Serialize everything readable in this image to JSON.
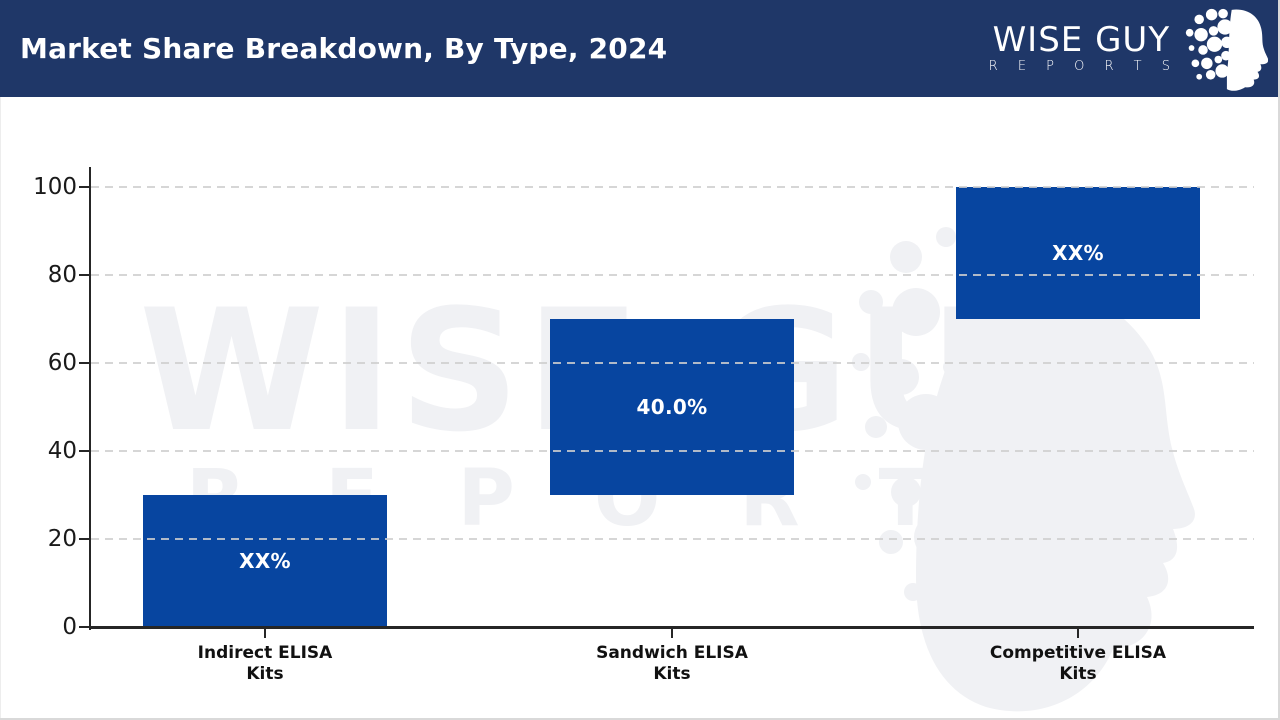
{
  "header": {
    "title": "Market Share Breakdown, By Type, 2024",
    "bg_color": "#1F3768",
    "logo": {
      "line1": "WISE GUY",
      "line2": "R E P O R T S"
    }
  },
  "watermark": {
    "line1": "WISE GUY",
    "line2": "R E P O R T S"
  },
  "chart_data": {
    "type": "bar",
    "subtype": "floating-segment (waterfall style)",
    "title": "Market Share Breakdown, By Type, 2024",
    "categories": [
      {
        "line1": "Indirect ELISA",
        "line2": "Kits"
      },
      {
        "line1": "Sandwich ELISA",
        "line2": "Kits"
      },
      {
        "line1": "Competitive ELISA",
        "line2": "Kits"
      }
    ],
    "segments": [
      {
        "start": 0,
        "end": 30,
        "label": "XX%"
      },
      {
        "start": 30,
        "end": 70,
        "label": "40.0%"
      },
      {
        "start": 70,
        "end": 100,
        "label": "XX%"
      }
    ],
    "xlabel": "",
    "ylabel": "",
    "ylim": [
      0,
      100
    ],
    "yticks": [
      0,
      20,
      40,
      60,
      80,
      100
    ],
    "grid": "horizontal dashed, drawn over bars",
    "legend": "none",
    "bar_color": "#0745A0",
    "bar_label_color": "#ffffff"
  }
}
